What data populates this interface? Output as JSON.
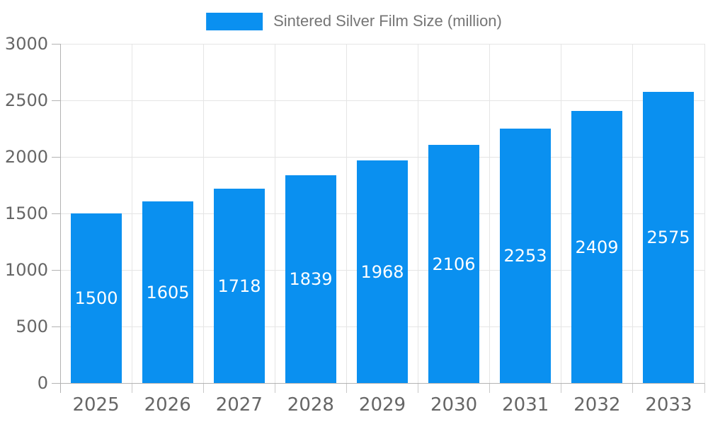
{
  "chart_data": {
    "type": "bar",
    "title": "",
    "legend": "Sintered Silver Film Size (million)",
    "legend_position": "top",
    "categories": [
      "2025",
      "2026",
      "2027",
      "2028",
      "2029",
      "2030",
      "2031",
      "2032",
      "2033"
    ],
    "values": [
      1500,
      1605,
      1718,
      1839,
      1968,
      2106,
      2253,
      2409,
      2575
    ],
    "xlabel": "",
    "ylabel": "",
    "ylim": [
      0,
      3000
    ],
    "yticks": [
      0,
      500,
      1000,
      1500,
      2000,
      2500,
      3000
    ],
    "grid": true,
    "bar_label_position": "inside-center",
    "colors": {
      "bar": "#0a90f0",
      "bar_label": "#ffffff",
      "grid": "#e5e5e5",
      "axis": "#b3b3b3",
      "tick_below": "#c9c9c9",
      "axis_label": "#666666",
      "legend_text": "#757575",
      "background": "#ffffff"
    }
  }
}
